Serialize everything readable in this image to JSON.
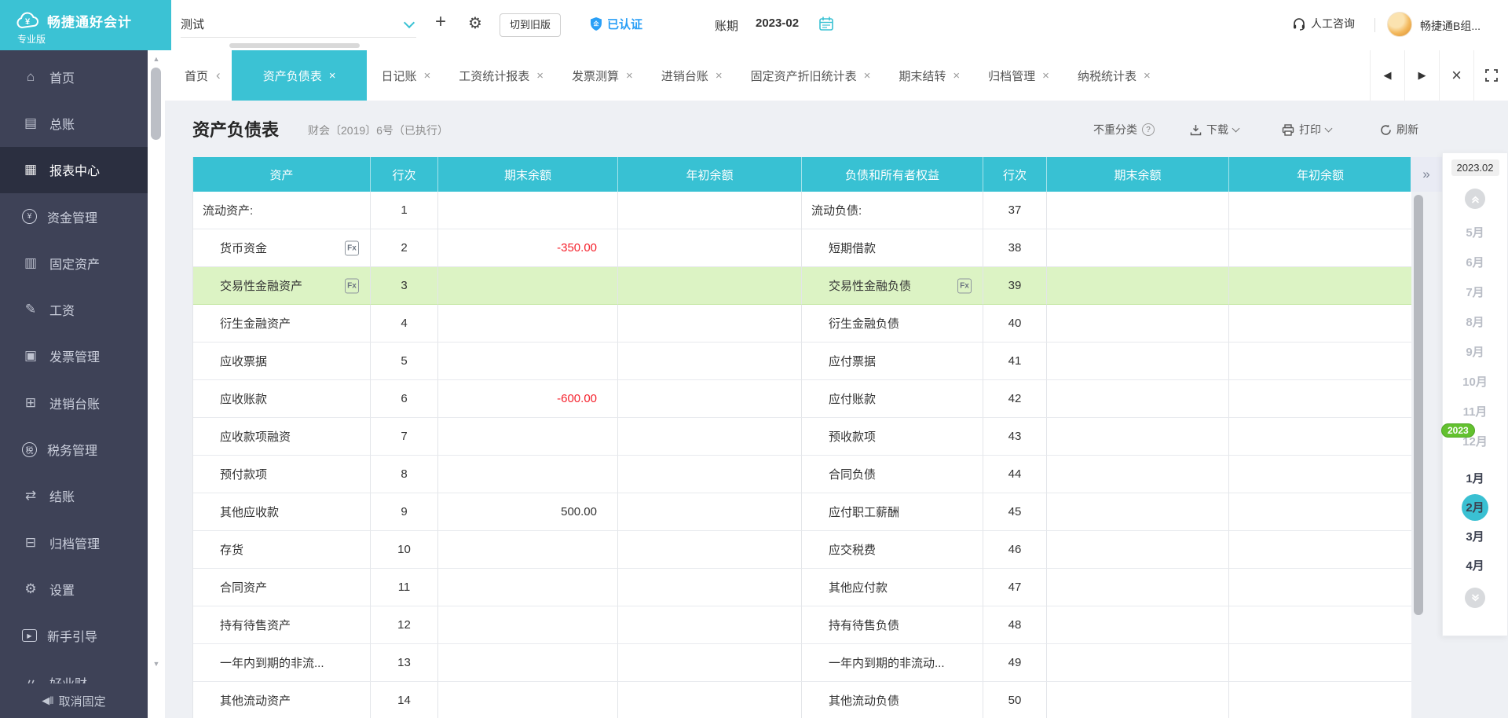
{
  "brand": {
    "title": "畅捷通好会计",
    "edition": "专业版"
  },
  "topbar": {
    "account": "测试",
    "switch_version": "切到旧版",
    "certified": "已认证",
    "period_label": "账期",
    "period_value": "2023-02",
    "support": "人工咨询",
    "user": "畅捷通B组..."
  },
  "tabbar": {
    "home": "首页",
    "active_index": 0,
    "tabs": [
      "资产负债表",
      "日记账",
      "工资统计报表",
      "发票测算",
      "进销台账",
      "固定资产折旧统计表",
      "期末结转",
      "归档管理",
      "纳税统计表"
    ]
  },
  "sidebar": {
    "active_index": 2,
    "unpin": "取消固定",
    "items": [
      {
        "id": "home",
        "icon": "home-icon",
        "label": "首页"
      },
      {
        "id": "general-ledger",
        "icon": "ledger-icon",
        "label": "总账"
      },
      {
        "id": "report-center",
        "icon": "report-chart-icon",
        "label": "报表中心"
      },
      {
        "id": "funds",
        "icon": "money-bag-icon",
        "label": "资金管理"
      },
      {
        "id": "fixed-assets",
        "icon": "building-icon",
        "label": "固定资产"
      },
      {
        "id": "payroll",
        "icon": "payroll-doc-icon",
        "label": "工资"
      },
      {
        "id": "invoice",
        "icon": "invoice-icon",
        "label": "发票管理"
      },
      {
        "id": "trade-ledger",
        "icon": "trade-grid-icon",
        "label": "进销台账"
      },
      {
        "id": "tax",
        "icon": "tax-circle-icon",
        "label": "税务管理"
      },
      {
        "id": "closing",
        "icon": "closing-book-icon",
        "label": "结账"
      },
      {
        "id": "archive",
        "icon": "archive-tray-icon",
        "label": "归档管理"
      },
      {
        "id": "settings",
        "icon": "gear-icon",
        "label": "设置"
      },
      {
        "id": "guide",
        "icon": "play-box-icon",
        "label": "新手引导"
      },
      {
        "id": "product",
        "icon": "product-icon",
        "label": "好业财"
      }
    ]
  },
  "report": {
    "title": "资产负债表",
    "subtitle": "财会〔2019〕6号（已执行）",
    "toolbar": {
      "reclassify": "不重分类",
      "download": "下载",
      "print": "打印",
      "refresh": "刷新"
    }
  },
  "table": {
    "headers": [
      "资产",
      "行次",
      "期末余额",
      "年初余额",
      "负债和所有者权益",
      "行次",
      "期末余额",
      "年初余额"
    ],
    "rows": [
      {
        "asset": "流动资产:",
        "cat": true,
        "a_fx": false,
        "a_line": "1",
        "a_end": "",
        "a_red": false,
        "a_begin": "",
        "liab": "流动负债:",
        "l_fx": false,
        "l_line": "37",
        "l_end": "",
        "l_begin": "",
        "green": false
      },
      {
        "asset": "货币资金",
        "cat": false,
        "a_fx": true,
        "a_line": "2",
        "a_end": "-350.00",
        "a_red": true,
        "a_begin": "",
        "liab": "短期借款",
        "l_fx": false,
        "l_line": "38",
        "l_end": "",
        "l_begin": "",
        "green": false
      },
      {
        "asset": "交易性金融资产",
        "cat": false,
        "a_fx": true,
        "a_line": "3",
        "a_end": "",
        "a_red": false,
        "a_begin": "",
        "liab": "交易性金融负债",
        "l_fx": true,
        "l_line": "39",
        "l_end": "",
        "l_begin": "",
        "green": true
      },
      {
        "asset": "衍生金融资产",
        "cat": false,
        "a_fx": false,
        "a_line": "4",
        "a_end": "",
        "a_red": false,
        "a_begin": "",
        "liab": "衍生金融负债",
        "l_fx": false,
        "l_line": "40",
        "l_end": "",
        "l_begin": "",
        "green": false
      },
      {
        "asset": "应收票据",
        "cat": false,
        "a_fx": false,
        "a_line": "5",
        "a_end": "",
        "a_red": false,
        "a_begin": "",
        "liab": "应付票据",
        "l_fx": false,
        "l_line": "41",
        "l_end": "",
        "l_begin": "",
        "green": false
      },
      {
        "asset": "应收账款",
        "cat": false,
        "a_fx": false,
        "a_line": "6",
        "a_end": "-600.00",
        "a_red": true,
        "a_begin": "",
        "liab": "应付账款",
        "l_fx": false,
        "l_line": "42",
        "l_end": "",
        "l_begin": "",
        "green": false
      },
      {
        "asset": "应收款项融资",
        "cat": false,
        "a_fx": false,
        "a_line": "7",
        "a_end": "",
        "a_red": false,
        "a_begin": "",
        "liab": "预收款项",
        "l_fx": false,
        "l_line": "43",
        "l_end": "",
        "l_begin": "",
        "green": false
      },
      {
        "asset": "预付款项",
        "cat": false,
        "a_fx": false,
        "a_line": "8",
        "a_end": "",
        "a_red": false,
        "a_begin": "",
        "liab": "合同负债",
        "l_fx": false,
        "l_line": "44",
        "l_end": "",
        "l_begin": "",
        "green": false
      },
      {
        "asset": "其他应收款",
        "cat": false,
        "a_fx": false,
        "a_line": "9",
        "a_end": "500.00",
        "a_red": false,
        "a_begin": "",
        "liab": "应付职工薪酬",
        "l_fx": false,
        "l_line": "45",
        "l_end": "",
        "l_begin": "",
        "green": false
      },
      {
        "asset": "存货",
        "cat": false,
        "a_fx": false,
        "a_line": "10",
        "a_end": "",
        "a_red": false,
        "a_begin": "",
        "liab": "应交税费",
        "l_fx": false,
        "l_line": "46",
        "l_end": "",
        "l_begin": "",
        "green": false
      },
      {
        "asset": "合同资产",
        "cat": false,
        "a_fx": false,
        "a_line": "11",
        "a_end": "",
        "a_red": false,
        "a_begin": "",
        "liab": "其他应付款",
        "l_fx": false,
        "l_line": "47",
        "l_end": "",
        "l_begin": "",
        "green": false
      },
      {
        "asset": "持有待售资产",
        "cat": false,
        "a_fx": false,
        "a_line": "12",
        "a_end": "",
        "a_red": false,
        "a_begin": "",
        "liab": "持有待售负债",
        "l_fx": false,
        "l_line": "48",
        "l_end": "",
        "l_begin": "",
        "green": false
      },
      {
        "asset": "一年内到期的非流...",
        "cat": false,
        "a_fx": false,
        "a_line": "13",
        "a_end": "",
        "a_red": false,
        "a_begin": "",
        "liab": "一年内到期的非流动...",
        "l_fx": false,
        "l_line": "49",
        "l_end": "",
        "l_begin": "",
        "green": false
      },
      {
        "asset": "其他流动资产",
        "cat": false,
        "a_fx": false,
        "a_line": "14",
        "a_end": "",
        "a_red": false,
        "a_begin": "",
        "liab": "其他流动负债",
        "l_fx": false,
        "l_line": "50",
        "l_end": "",
        "l_begin": "",
        "green": false
      }
    ]
  },
  "period_panel": {
    "current": "2023.02",
    "prev_months": [
      "5月",
      "6月",
      "7月",
      "8月",
      "9月",
      "10月",
      "11月",
      "12月"
    ],
    "year_badge": "2023",
    "months": [
      "1月",
      "2月",
      "3月",
      "4月"
    ],
    "selected_month": "2月"
  }
}
